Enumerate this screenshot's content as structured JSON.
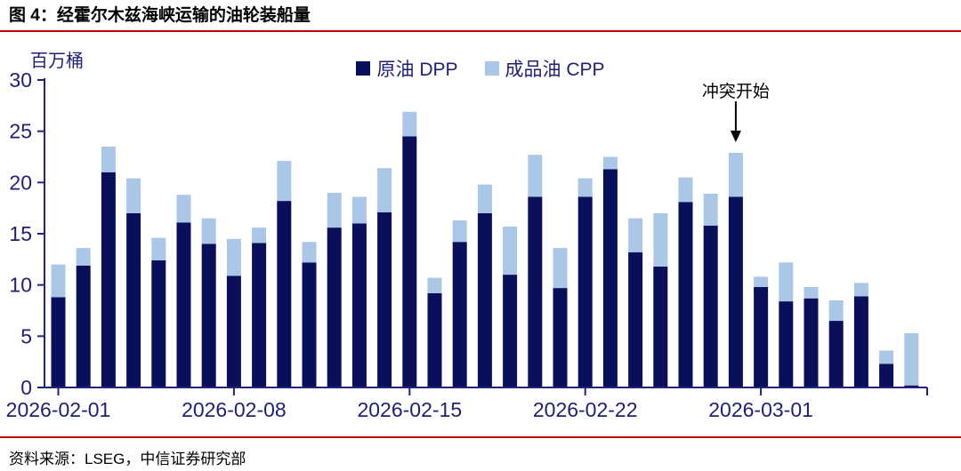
{
  "header": {
    "title": "图 4：经霍尔木兹海峡运输的油轮装船量"
  },
  "chart_data": {
    "type": "bar",
    "stacked": true,
    "title": "经霍尔木兹海峡运输的油轮装船量",
    "unit_label": "百万桶",
    "ylim": [
      0,
      30
    ],
    "yticks": [
      0,
      5,
      10,
      15,
      20,
      25,
      30
    ],
    "grid": false,
    "legend_position": "top-center",
    "x": [
      "2026-02-01",
      "2026-02-02",
      "2026-02-03",
      "2026-02-04",
      "2026-02-05",
      "2026-02-06",
      "2026-02-07",
      "2026-02-08",
      "2026-02-09",
      "2026-02-10",
      "2026-02-11",
      "2026-02-12",
      "2026-02-13",
      "2026-02-14",
      "2026-02-15",
      "2026-02-16",
      "2026-02-17",
      "2026-02-18",
      "2026-02-19",
      "2026-02-20",
      "2026-02-21",
      "2026-02-22",
      "2026-02-23",
      "2026-02-24",
      "2026-02-25",
      "2026-02-26",
      "2026-02-27",
      "2026-02-28",
      "2026-03-01",
      "2026-03-02",
      "2026-03-03",
      "2026-03-04",
      "2026-03-05",
      "2026-03-06",
      "2026-03-07"
    ],
    "x_tick_labels": [
      "2026-02-01",
      "2026-02-08",
      "2026-02-15",
      "2026-02-22",
      "2026-03-01"
    ],
    "series": [
      {
        "name": "原油 DPP",
        "color": "#0a0f5c",
        "values": [
          8.8,
          11.9,
          21.0,
          17.0,
          12.4,
          16.1,
          14.0,
          10.9,
          14.1,
          18.2,
          12.2,
          15.6,
          16.0,
          17.1,
          24.5,
          9.2,
          14.2,
          17.0,
          11.0,
          18.6,
          9.7,
          18.6,
          21.3,
          13.2,
          11.8,
          18.1,
          15.8,
          18.6,
          9.8,
          8.4,
          8.7,
          6.5,
          8.9,
          2.3,
          0.2
        ]
      },
      {
        "name": "成品油 CPP",
        "color": "#aac7e8",
        "values": [
          3.2,
          1.7,
          2.5,
          3.4,
          2.2,
          2.7,
          2.5,
          3.6,
          1.5,
          3.9,
          2.0,
          3.4,
          2.6,
          4.3,
          2.4,
          1.5,
          2.1,
          2.8,
          4.7,
          4.1,
          3.9,
          1.8,
          1.2,
          3.3,
          5.2,
          2.4,
          3.1,
          4.3,
          1.0,
          3.8,
          1.1,
          2.0,
          1.3,
          1.3,
          5.1
        ]
      }
    ],
    "annotation": {
      "text": "冲突开始",
      "x": "2026-02-28"
    }
  },
  "footer": {
    "source": "资料来源：LSEG，中信证券研究部"
  },
  "colors": {
    "accent_red": "#c00000",
    "axis_text": "#1f1f78",
    "axis_line": "#23237a",
    "annotation_black": "#000000"
  }
}
